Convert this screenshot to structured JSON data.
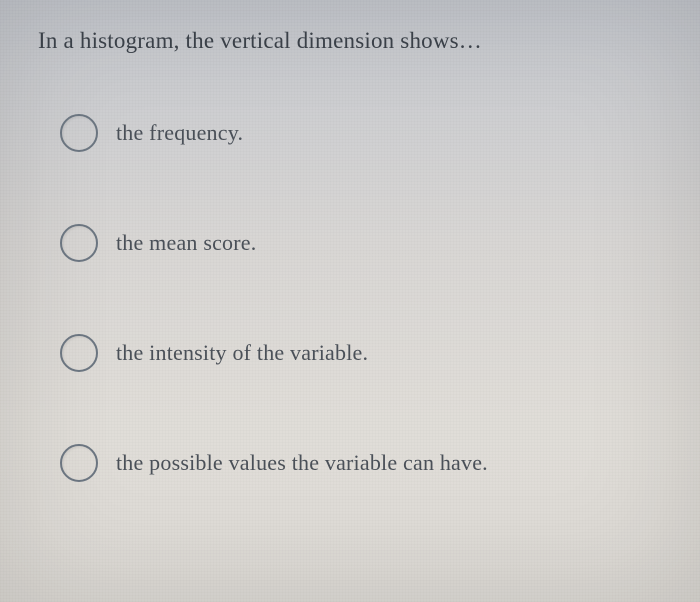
{
  "question": {
    "prompt": "In a histogram, the vertical dimension shows…"
  },
  "options": [
    {
      "label": "the frequency."
    },
    {
      "label": "the mean score."
    },
    {
      "label": "the intensity of the variable."
    },
    {
      "label": "the possible values the variable can have."
    }
  ],
  "styling": {
    "background_gradient_top": "#c5c8ce",
    "background_gradient_mid": "#d8d6d4",
    "background_gradient_bottom": "#dedbd6",
    "text_color": "#3a4048",
    "option_text_color": "#4a5058",
    "radio_border_color": "#6b7580",
    "question_fontsize": 23,
    "option_fontsize": 22,
    "radio_diameter": 38
  }
}
